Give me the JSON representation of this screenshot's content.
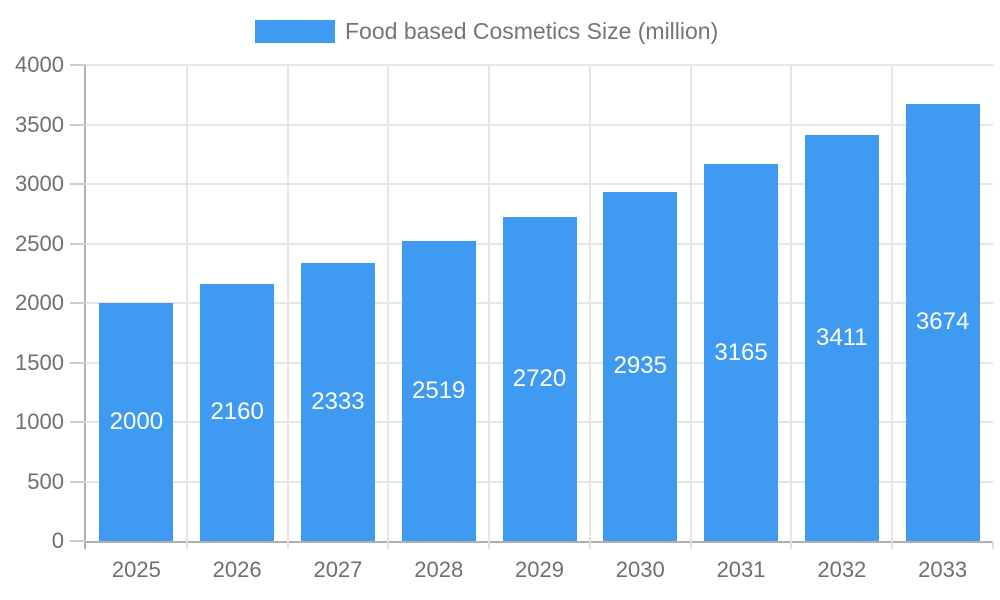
{
  "legend": {
    "label": "Food based Cosmetics Size (million)"
  },
  "colors": {
    "bar": "#3e9bf1",
    "gridline": "#e6e6e6",
    "axis_line": "#b0b0b0",
    "ytick": "#cccccc",
    "xtick": "#e0e0e0",
    "axis_text": "#6f6f6f",
    "legend_text": "#757575",
    "value_label_text": "#ffffff",
    "background": "#ffffff"
  },
  "chart_data": {
    "type": "bar",
    "title": "Food based Cosmetics Size (million)",
    "categories": [
      "2025",
      "2026",
      "2027",
      "2028",
      "2029",
      "2030",
      "2031",
      "2032",
      "2033"
    ],
    "values": [
      2000,
      2160,
      2333,
      2519,
      2720,
      2935,
      3165,
      3411,
      3674
    ],
    "value_labels_shown": true,
    "value_label_position": "inside-center",
    "xlabel": "",
    "ylabel": "",
    "ylim": [
      0,
      4000
    ],
    "ytick_step": 500,
    "ytick_labels": [
      "0",
      "500",
      "1000",
      "1500",
      "2000",
      "2500",
      "3000",
      "3500",
      "4000"
    ],
    "grid": true,
    "legend_position": "top"
  }
}
